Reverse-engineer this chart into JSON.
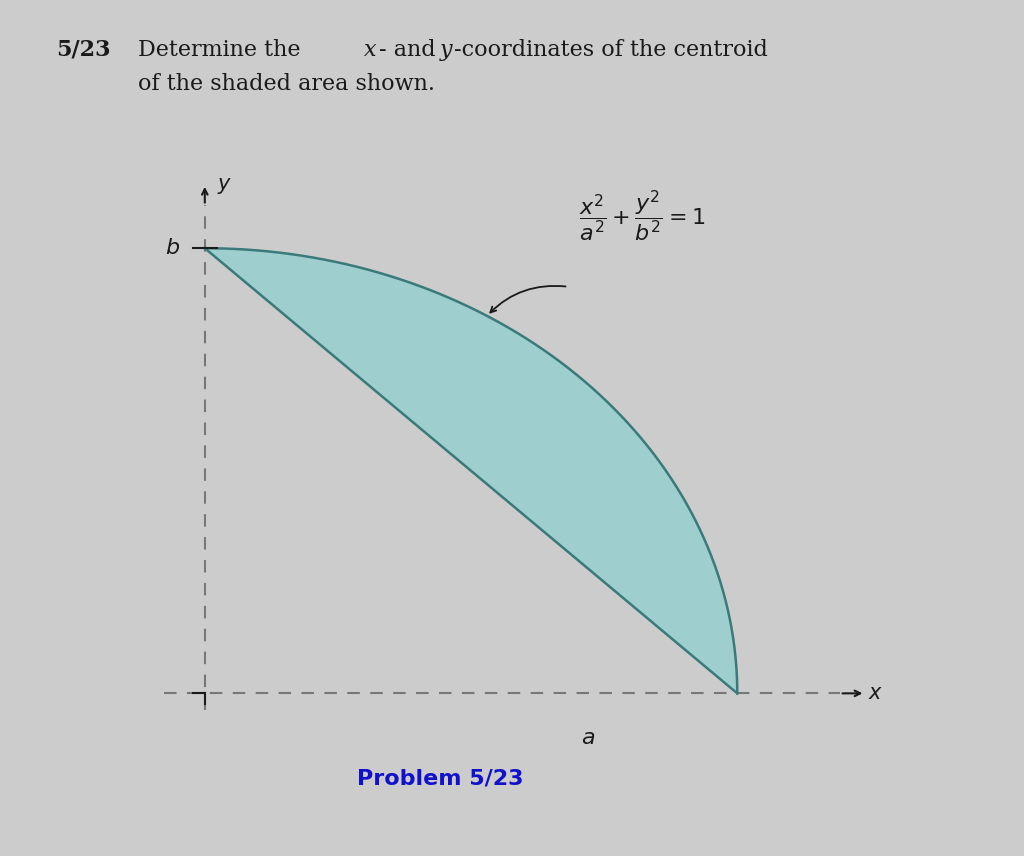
{
  "title_bold": "5/23",
  "title_text": "Determine the x- and y-coordinates of the centroid of the shaded area shown.",
  "title_fontsize": 16,
  "title_color": "#1a1a1a",
  "background_color": "#cccccc",
  "shaded_color": "#9ecece",
  "shaded_edge_color": "#3a7a7a",
  "shaded_alpha": 1.0,
  "problem_label": "Problem 5/23",
  "problem_label_color": "#1111cc",
  "problem_label_fontsize": 16,
  "axis_label_fontsize": 15,
  "b_label_fontsize": 16,
  "a_label_fontsize": 16,
  "equation_fontsize": 16,
  "dashed_color": "#777777",
  "arrow_color": "#1a1a1a",
  "fig_width": 10.24,
  "fig_height": 8.56,
  "dpi": 100,
  "a": 1.0,
  "b": 0.55
}
